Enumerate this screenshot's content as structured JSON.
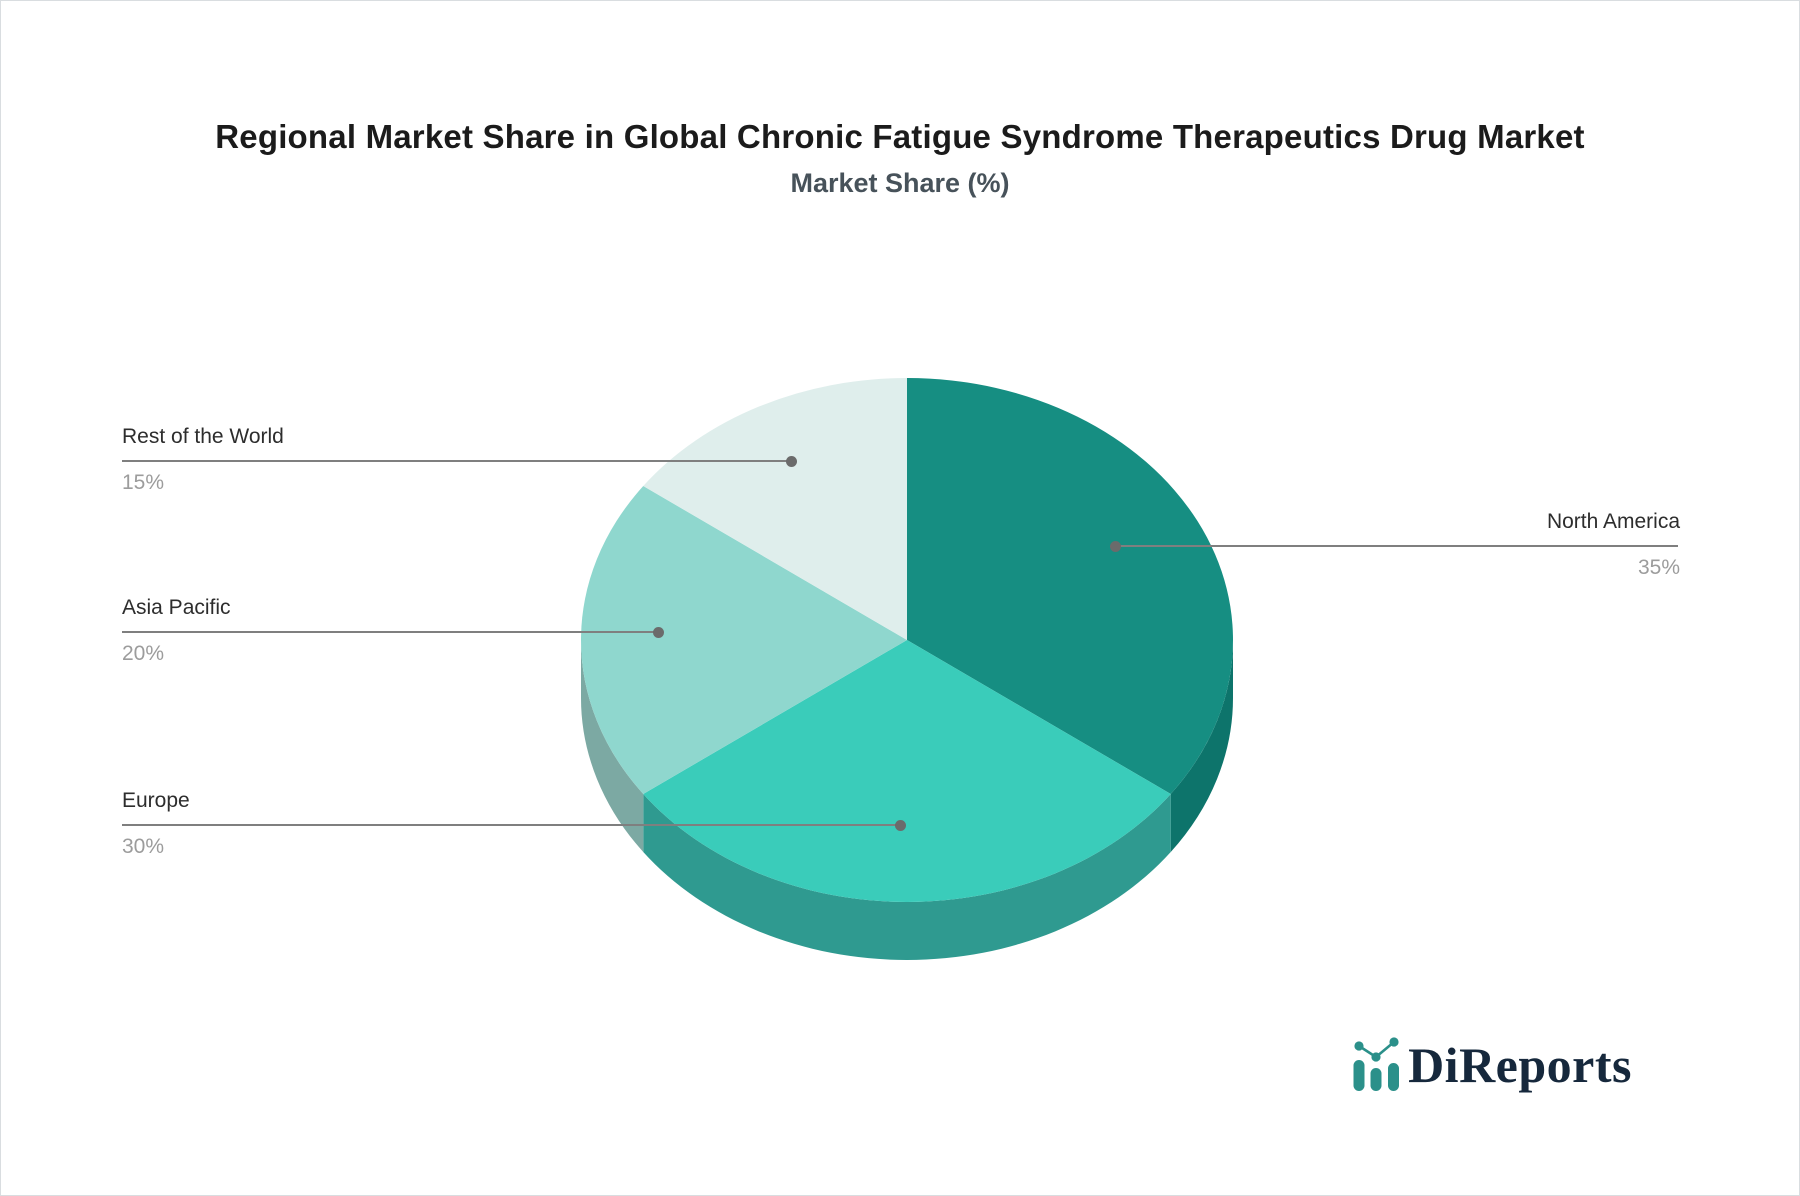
{
  "header": {
    "title": "Regional Market Share in Global Chronic Fatigue Syndrome Therapeutics Drug Market",
    "subtitle": "Market Share (%)"
  },
  "chart_data": {
    "type": "pie",
    "title": "Regional Market Share in Global Chronic Fatigue Syndrome Therapeutics Drug Market",
    "subtitle": "Market Share (%)",
    "unit": "%",
    "style": "3d-pie",
    "start_angle_deg": 0,
    "direction": "clockwise",
    "legend": "none, values shown as callout labels",
    "categories": [
      "North America",
      "Europe",
      "Asia Pacific",
      "Rest of the World"
    ],
    "values": [
      35,
      30,
      20,
      15
    ],
    "slices": [
      {
        "label": "North America",
        "value": 35,
        "pct_label": "35%",
        "color": "#168e82",
        "side_color": "#0d746b",
        "label_side": "right"
      },
      {
        "label": "Europe",
        "value": 30,
        "pct_label": "30%",
        "color": "#3accba",
        "side_color": "#2f9a90",
        "label_side": "left"
      },
      {
        "label": "Asia Pacific",
        "value": 20,
        "pct_label": "20%",
        "color": "#8fd7ce",
        "side_color": "#7ca9a3",
        "label_side": "left"
      },
      {
        "label": "Rest of the World",
        "value": 15,
        "pct_label": "15%",
        "color": "#dfeeec",
        "side_color": "#bcd2cf",
        "label_side": "left"
      }
    ],
    "callout_line_color": "#7f7f7f",
    "label_text_color": "#2d2d2d",
    "pct_text_color": "#9c9c9c"
  },
  "logo": {
    "brand": "DiReports",
    "icon": "bar-chart-trend-icon",
    "text_color": "#16283c",
    "icon_color": "#2b908a"
  }
}
